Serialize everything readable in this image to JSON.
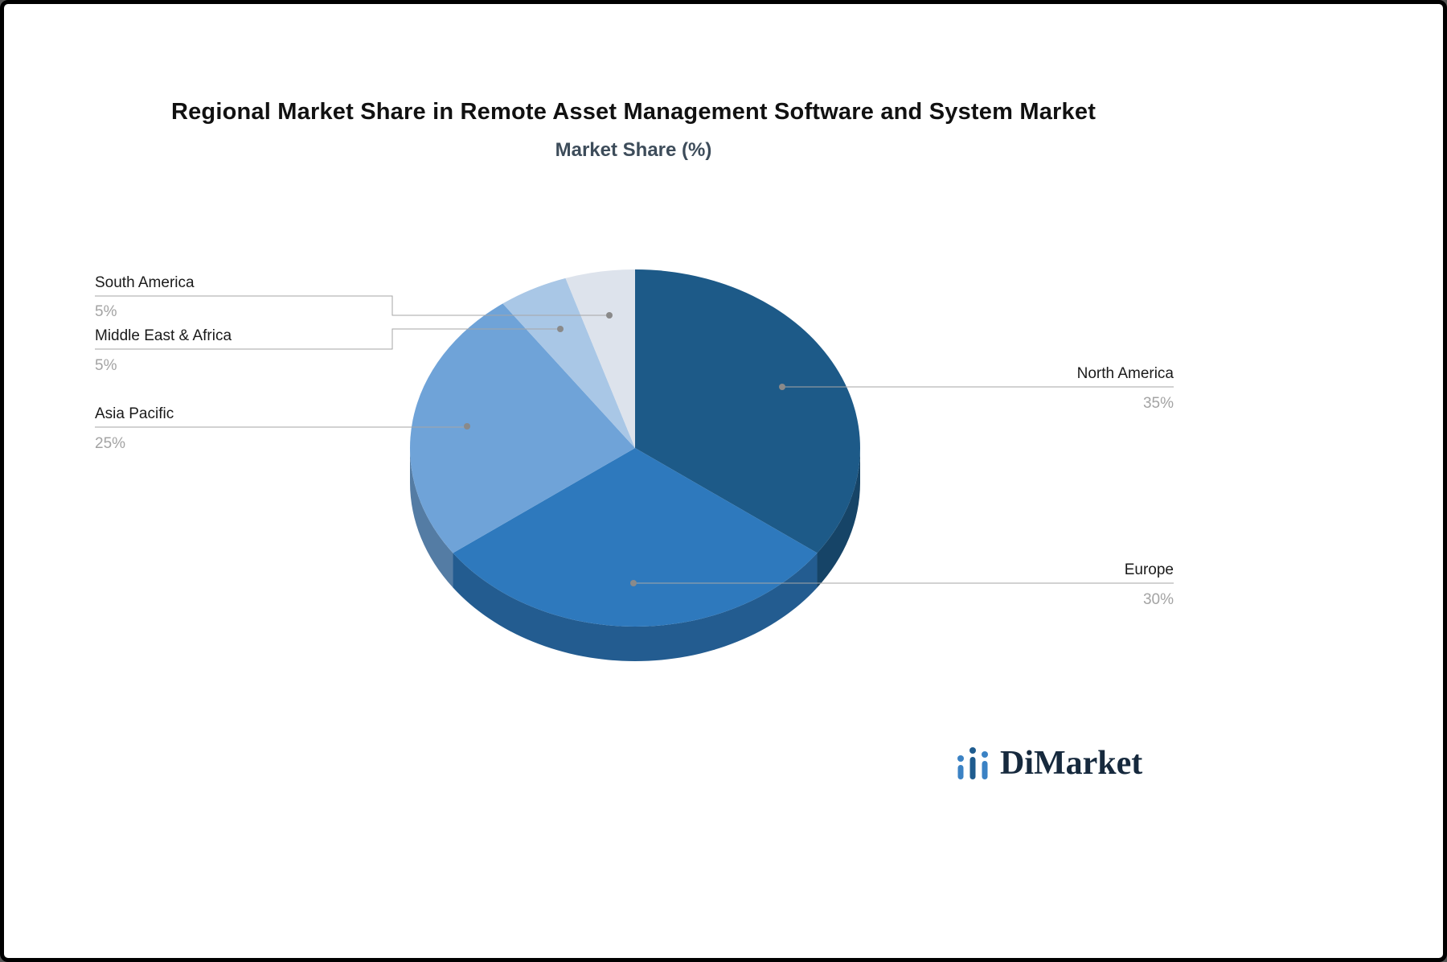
{
  "title": "Regional Market Share in Remote Asset Management Software and System Market",
  "subtitle": "Market Share (%)",
  "chart_data": {
    "type": "pie",
    "title": "Regional Market Share in Remote Asset Management Software and System Market",
    "subtitle": "Market Share (%)",
    "unit": "%",
    "labels": [
      "North America",
      "Europe",
      "Asia Pacific",
      "Middle East & Africa",
      "South America"
    ],
    "values": [
      35,
      30,
      25,
      5,
      5
    ],
    "value_labels": [
      "35%",
      "30%",
      "25%",
      "5%",
      "5%"
    ],
    "colors": [
      "#1d5a88",
      "#2e79bd",
      "#6fa3d8",
      "#a9c7e6",
      "#dde3ec"
    ],
    "style": "3d",
    "start_angle_deg": 0,
    "direction": "clockwise",
    "legend": "none"
  },
  "logo": {
    "text": "DiMarket"
  }
}
